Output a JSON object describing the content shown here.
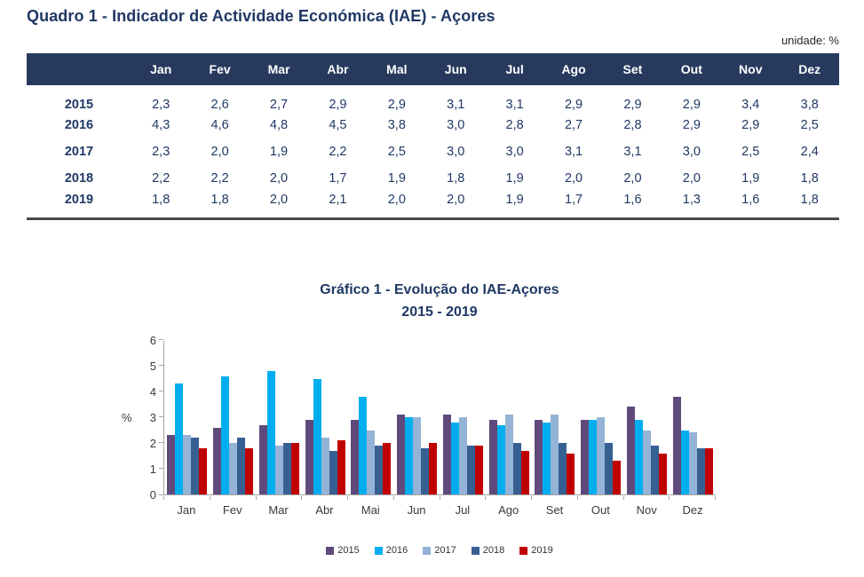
{
  "table": {
    "title": "Quadro 1 - Indicador de Actividade Económica (IAE) - Açores",
    "unit_label": "unidade: %",
    "columns": [
      "",
      "Jan",
      "Fev",
      "Mar",
      "Abr",
      "Mal",
      "Jun",
      "Jul",
      "Ago",
      "Set",
      "Out",
      "Nov",
      "Dez"
    ],
    "rows": [
      {
        "year": "2015",
        "values": [
          "2,3",
          "2,6",
          "2,7",
          "2,9",
          "2,9",
          "3,1",
          "3,1",
          "2,9",
          "2,9",
          "2,9",
          "3,4",
          "3,8"
        ]
      },
      {
        "year": "2016",
        "values": [
          "4,3",
          "4,6",
          "4,8",
          "4,5",
          "3,8",
          "3,0",
          "2,8",
          "2,7",
          "2,8",
          "2,9",
          "2,9",
          "2,5"
        ]
      },
      {
        "year": "2017",
        "values": [
          "2,3",
          "2,0",
          "1,9",
          "2,2",
          "2,5",
          "3,0",
          "3,0",
          "3,1",
          "3,1",
          "3,0",
          "2,5",
          "2,4"
        ]
      },
      {
        "year": "2018",
        "values": [
          "2,2",
          "2,2",
          "2,0",
          "1,7",
          "1,9",
          "1,8",
          "1,9",
          "2,0",
          "2,0",
          "2,0",
          "1,9",
          "1,8"
        ]
      },
      {
        "year": "2019",
        "values": [
          "1,8",
          "1,8",
          "2,0",
          "2,1",
          "2,0",
          "2,0",
          "1,9",
          "1,7",
          "1,6",
          "1,3",
          "1,6",
          "1,8"
        ]
      }
    ]
  },
  "chart": {
    "title_line1": "Gráfico 1 - Evolução do IAE-Açores",
    "title_line2": "2015 - 2019",
    "ylabel": "%"
  },
  "chart_data": {
    "type": "bar",
    "title": "Gráfico 1 - Evolução do IAE-Açores 2015 - 2019",
    "xlabel": "",
    "ylabel": "%",
    "ylim": [
      0,
      6
    ],
    "yticks": [
      0,
      1,
      2,
      3,
      4,
      5,
      6
    ],
    "grid": false,
    "legend_position": "bottom",
    "categories": [
      "Jan",
      "Fev",
      "Mar",
      "Abr",
      "Mai",
      "Jun",
      "Jul",
      "Ago",
      "Set",
      "Out",
      "Nov",
      "Dez"
    ],
    "series": [
      {
        "name": "2015",
        "color": "#604A7B",
        "values": [
          2.3,
          2.6,
          2.7,
          2.9,
          2.9,
          3.1,
          3.1,
          2.9,
          2.9,
          2.9,
          3.4,
          3.8
        ]
      },
      {
        "name": "2016",
        "color": "#00AEEF",
        "values": [
          4.3,
          4.6,
          4.8,
          4.5,
          3.8,
          3.0,
          2.8,
          2.7,
          2.8,
          2.9,
          2.9,
          2.5
        ]
      },
      {
        "name": "2017",
        "color": "#95B3D7",
        "values": [
          2.3,
          2.0,
          1.9,
          2.2,
          2.5,
          3.0,
          3.0,
          3.1,
          3.1,
          3.0,
          2.5,
          2.4
        ]
      },
      {
        "name": "2018",
        "color": "#376092",
        "values": [
          2.2,
          2.2,
          2.0,
          1.7,
          1.9,
          1.8,
          1.9,
          2.0,
          2.0,
          2.0,
          1.9,
          1.8
        ]
      },
      {
        "name": "2019",
        "color": "#C00000",
        "values": [
          1.8,
          1.8,
          2.0,
          2.1,
          2.0,
          2.0,
          1.9,
          1.7,
          1.6,
          1.3,
          1.6,
          1.8
        ]
      }
    ]
  },
  "colors": {
    "title_text": "#1F3864",
    "table_header_bg": "#273A5E",
    "table_text": "#1F3864",
    "axis": "#A6A6A6",
    "table_bottom_border": "#4A4A4A"
  }
}
